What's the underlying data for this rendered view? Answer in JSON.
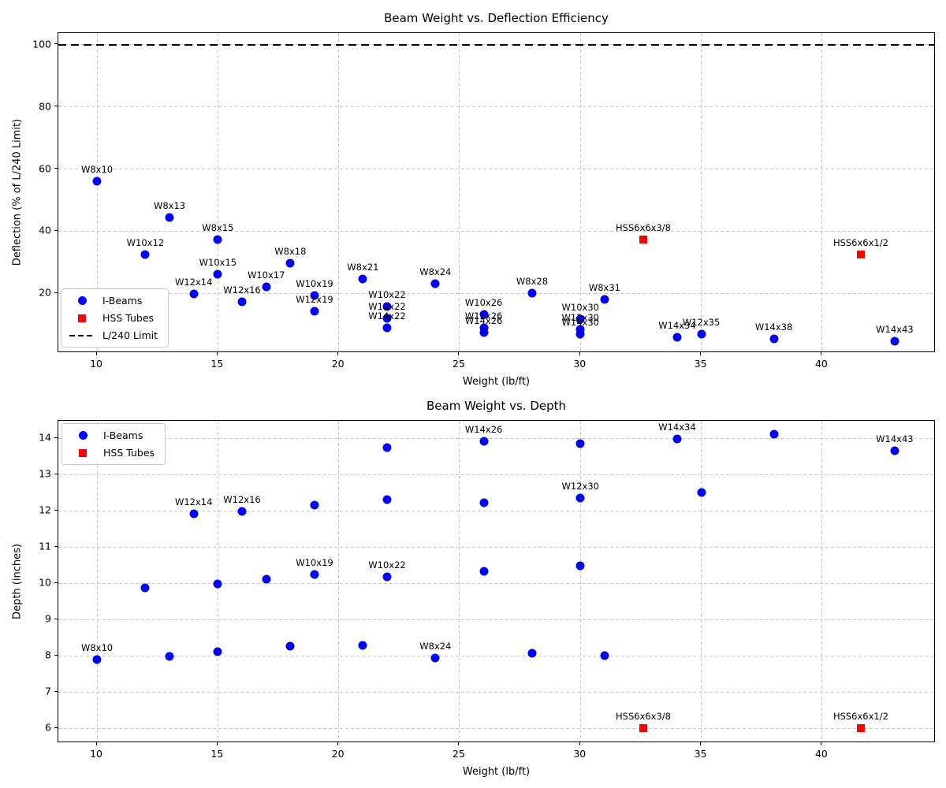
{
  "figure": {
    "background": "#ffffff"
  },
  "colors": {
    "ibeams": "#0000ff",
    "hss_tubes": "#ff0000",
    "limit_line": "#000000",
    "grid": "#c9c9c9",
    "spine": "#000000",
    "text": "#000000",
    "legend_border": "#cccccc"
  },
  "chart_data": [
    {
      "type": "scatter",
      "title": "Beam Weight vs. Deflection Efficiency",
      "xlabel": "Weight (lb/ft)",
      "ylabel": "Deflection (% of L/240 Limit)",
      "xlim": [
        8.4,
        44.7
      ],
      "ylim": [
        0.8,
        103.8
      ],
      "xticks": [
        10,
        15,
        20,
        25,
        30,
        35,
        40
      ],
      "yticks": [
        20,
        40,
        60,
        80,
        100
      ],
      "grid": true,
      "limit_line": {
        "y": 100,
        "label": "L/240 Limit"
      },
      "legend": {
        "position": "lower-left",
        "items": [
          {
            "label": "I-Beams",
            "marker": "circle",
            "color": "#0000ff"
          },
          {
            "label": "HSS Tubes",
            "marker": "square",
            "color": "#ff0000"
          },
          {
            "label": "L/240 Limit",
            "marker": "dashed-line",
            "color": "#000000"
          }
        ]
      },
      "series": [
        {
          "name": "I-Beams",
          "marker": "circle",
          "color": "#0000ff",
          "points": [
            {
              "name": "W8x10",
              "x": 10,
              "y": 56.0,
              "labeled": true
            },
            {
              "name": "W10x12",
              "x": 12,
              "y": 32.5,
              "labeled": true
            },
            {
              "name": "W8x13",
              "x": 13,
              "y": 44.5,
              "labeled": true
            },
            {
              "name": "W12x14",
              "x": 14,
              "y": 19.8,
              "labeled": true
            },
            {
              "name": "W8x15",
              "x": 15,
              "y": 37.4,
              "labeled": true
            },
            {
              "name": "W10x15",
              "x": 15,
              "y": 26.1,
              "labeled": true
            },
            {
              "name": "W12x16",
              "x": 16,
              "y": 17.4,
              "labeled": true
            },
            {
              "name": "W10x17",
              "x": 17,
              "y": 22.2,
              "labeled": true
            },
            {
              "name": "W8x18",
              "x": 18,
              "y": 29.7,
              "labeled": true
            },
            {
              "name": "W10x19",
              "x": 19,
              "y": 19.3,
              "labeled": true
            },
            {
              "name": "W12x19",
              "x": 19,
              "y": 14.2,
              "labeled": true
            },
            {
              "name": "W8x21",
              "x": 21,
              "y": 24.7,
              "labeled": true
            },
            {
              "name": "W10x22",
              "x": 22,
              "y": 15.7,
              "labeled": true
            },
            {
              "name": "W12x22",
              "x": 22,
              "y": 12.0,
              "labeled": true
            },
            {
              "name": "W14x22",
              "x": 22,
              "y": 9.0,
              "labeled": true
            },
            {
              "name": "W8x24",
              "x": 24,
              "y": 23.0,
              "labeled": true
            },
            {
              "name": "W10x26",
              "x": 26,
              "y": 13.2,
              "labeled": true
            },
            {
              "name": "W12x26",
              "x": 26,
              "y": 8.8,
              "labeled": true
            },
            {
              "name": "W14x26",
              "x": 26,
              "y": 7.5,
              "labeled": true
            },
            {
              "name": "W8x28",
              "x": 28,
              "y": 20.2,
              "labeled": true
            },
            {
              "name": "W10x30",
              "x": 30,
              "y": 11.8,
              "labeled": true
            },
            {
              "name": "W12x30",
              "x": 30,
              "y": 8.3,
              "labeled": true
            },
            {
              "name": "W14x30",
              "x": 30,
              "y": 6.8,
              "labeled": true
            },
            {
              "name": "W8x31",
              "x": 31,
              "y": 18.0,
              "labeled": true
            },
            {
              "name": "W14x34",
              "x": 34,
              "y": 5.9,
              "labeled": true
            },
            {
              "name": "W12x35",
              "x": 35,
              "y": 6.9,
              "labeled": true
            },
            {
              "name": "W14x38",
              "x": 38,
              "y": 5.3,
              "labeled": true
            },
            {
              "name": "W14x43",
              "x": 43,
              "y": 4.7,
              "labeled": true
            }
          ]
        },
        {
          "name": "HSS Tubes",
          "marker": "square",
          "color": "#ff0000",
          "points": [
            {
              "name": "HSS6x6x3/8",
              "x": 32.6,
              "y": 37.3,
              "labeled": true
            },
            {
              "name": "HSS6x6x1/2",
              "x": 41.6,
              "y": 32.6,
              "labeled": true
            }
          ]
        }
      ]
    },
    {
      "type": "scatter",
      "title": "Beam Weight vs. Depth",
      "xlabel": "Weight (lb/ft)",
      "ylabel": "Depth (inches)",
      "xlim": [
        8.4,
        44.7
      ],
      "ylim": [
        5.59,
        14.48
      ],
      "xticks": [
        10,
        15,
        20,
        25,
        30,
        35,
        40
      ],
      "yticks": [
        6,
        7,
        8,
        9,
        10,
        11,
        12,
        13,
        14
      ],
      "grid": true,
      "legend": {
        "position": "upper-left",
        "items": [
          {
            "label": "I-Beams",
            "marker": "circle",
            "color": "#0000ff"
          },
          {
            "label": "HSS Tubes",
            "marker": "square",
            "color": "#ff0000"
          }
        ]
      },
      "series": [
        {
          "name": "I-Beams",
          "marker": "circle",
          "color": "#0000ff",
          "points": [
            {
              "name": "W8x10",
              "x": 10,
              "y": 7.89,
              "labeled": true
            },
            {
              "name": "W10x12",
              "x": 12,
              "y": 9.87,
              "labeled": false
            },
            {
              "name": "W8x13",
              "x": 13,
              "y": 7.99,
              "labeled": false
            },
            {
              "name": "W12x14",
              "x": 14,
              "y": 11.91,
              "labeled": true
            },
            {
              "name": "W8x15",
              "x": 15,
              "y": 8.11,
              "labeled": false
            },
            {
              "name": "W10x15",
              "x": 15,
              "y": 9.99,
              "labeled": false
            },
            {
              "name": "W12x16",
              "x": 16,
              "y": 11.99,
              "labeled": true
            },
            {
              "name": "W10x17",
              "x": 17,
              "y": 10.11,
              "labeled": false
            },
            {
              "name": "W8x18",
              "x": 18,
              "y": 8.26,
              "labeled": false
            },
            {
              "name": "W10x19",
              "x": 19,
              "y": 10.24,
              "labeled": true
            },
            {
              "name": "W12x19",
              "x": 19,
              "y": 12.16,
              "labeled": false
            },
            {
              "name": "W8x21",
              "x": 21,
              "y": 8.28,
              "labeled": false
            },
            {
              "name": "W10x22",
              "x": 22,
              "y": 10.17,
              "labeled": true
            },
            {
              "name": "W12x22",
              "x": 22,
              "y": 12.31,
              "labeled": false
            },
            {
              "name": "W14x22",
              "x": 22,
              "y": 13.74,
              "labeled": false
            },
            {
              "name": "W8x24",
              "x": 24,
              "y": 7.93,
              "labeled": true
            },
            {
              "name": "W10x26",
              "x": 26,
              "y": 10.33,
              "labeled": false
            },
            {
              "name": "W12x26",
              "x": 26,
              "y": 12.22,
              "labeled": false
            },
            {
              "name": "W14x26",
              "x": 26,
              "y": 13.91,
              "labeled": true
            },
            {
              "name": "W8x28",
              "x": 28,
              "y": 8.06,
              "labeled": false
            },
            {
              "name": "W10x30",
              "x": 30,
              "y": 10.47,
              "labeled": false
            },
            {
              "name": "W12x30",
              "x": 30,
              "y": 12.34,
              "labeled": true
            },
            {
              "name": "W14x30",
              "x": 30,
              "y": 13.84,
              "labeled": false
            },
            {
              "name": "W8x31",
              "x": 31,
              "y": 8.0,
              "labeled": false
            },
            {
              "name": "W14x34",
              "x": 34,
              "y": 13.98,
              "labeled": true
            },
            {
              "name": "W12x35",
              "x": 35,
              "y": 12.5,
              "labeled": false
            },
            {
              "name": "W14x38",
              "x": 38,
              "y": 14.1,
              "labeled": false
            },
            {
              "name": "W14x43",
              "x": 43,
              "y": 13.66,
              "labeled": true
            }
          ]
        },
        {
          "name": "HSS Tubes",
          "marker": "square",
          "color": "#ff0000",
          "points": [
            {
              "name": "HSS6x6x3/8",
              "x": 32.6,
              "y": 6.0,
              "labeled": true
            },
            {
              "name": "HSS6x6x1/2",
              "x": 41.6,
              "y": 6.0,
              "labeled": true
            }
          ]
        }
      ]
    }
  ]
}
